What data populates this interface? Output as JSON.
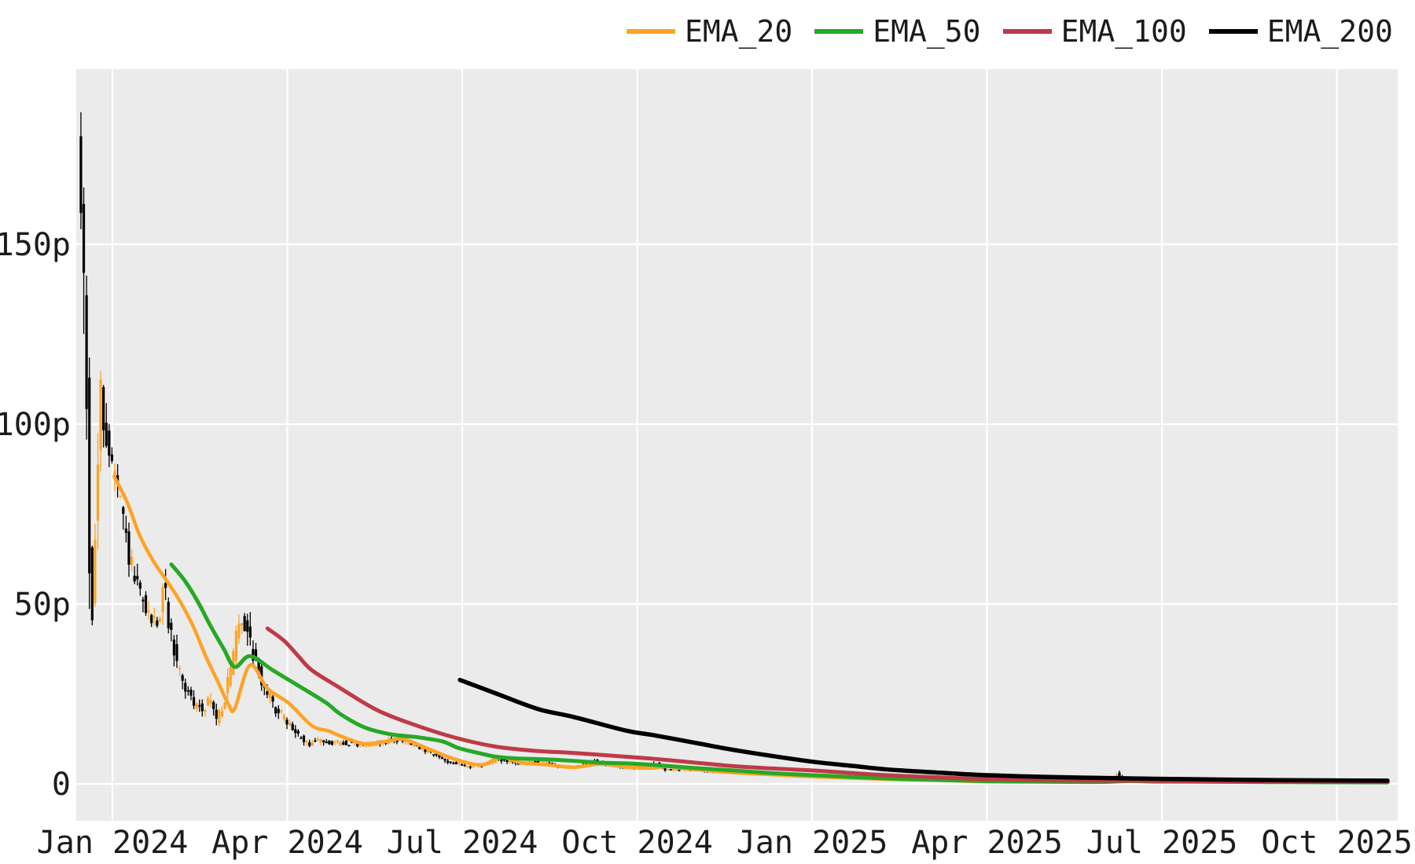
{
  "figure": {
    "background": "#ffffff",
    "plot_background": "#ebebeb",
    "gridline_color": "#ffffff",
    "text_color": "#1c1c1c"
  },
  "legend": {
    "items": [
      {
        "label": "EMA_20",
        "color": "#ffa325"
      },
      {
        "label": "EMA_50",
        "color": "#27a827"
      },
      {
        "label": "EMA_100",
        "color": "#bf3a47"
      },
      {
        "label": "EMA_200",
        "color": "#000000"
      }
    ]
  },
  "chart_data": {
    "type": "candlestick",
    "title": "",
    "grid": true,
    "legend_position": "top-right-above-axes",
    "x_axis": {
      "tick_labels": [
        "Jan 2024",
        "Apr 2024",
        "Jul 2024",
        "Oct 2024",
        "Jan 2025",
        "Apr 2025",
        "Jul 2025",
        "Oct 2025"
      ],
      "tick_months": [
        0,
        3,
        6,
        9,
        12,
        15,
        18,
        21
      ],
      "data_range_months": [
        -0.54,
        21.87
      ]
    },
    "y_axis": {
      "unit": "pence",
      "tick_labels": [
        "0",
        "50p",
        "100p",
        "150p"
      ],
      "tick_values": [
        0,
        50,
        100,
        150
      ],
      "range": [
        -10.3,
        198.7
      ]
    },
    "candles": {
      "up_color": "#ffa325",
      "down_color": "#000000",
      "step_months": 0.0484,
      "envelope_note": "keypoints [t_months_from_Jan2024, mid_price_pence, typical_hi_lo_range_pence] read from the pixels",
      "envelope": [
        [
          -0.54,
          172,
          28
        ],
        [
          -0.46,
          150,
          55
        ],
        [
          -0.4,
          110,
          55
        ],
        [
          -0.34,
          62,
          40
        ],
        [
          -0.29,
          48,
          18
        ],
        [
          -0.22,
          80,
          30
        ],
        [
          -0.16,
          108,
          20
        ],
        [
          -0.08,
          98,
          18
        ],
        [
          0.05,
          88,
          15
        ],
        [
          0.18,
          78,
          15
        ],
        [
          0.32,
          64,
          12
        ],
        [
          0.5,
          53,
          10
        ],
        [
          0.68,
          46,
          9
        ],
        [
          0.85,
          45,
          9
        ],
        [
          0.93,
          56,
          16
        ],
        [
          1.0,
          46,
          10
        ],
        [
          1.12,
          36,
          9
        ],
        [
          1.28,
          27,
          7
        ],
        [
          1.45,
          22,
          6
        ],
        [
          1.6,
          21,
          5
        ],
        [
          1.72,
          24,
          6
        ],
        [
          1.83,
          18,
          7
        ],
        [
          1.95,
          22,
          6
        ],
        [
          2.08,
          32,
          12
        ],
        [
          2.22,
          46,
          11
        ],
        [
          2.36,
          44,
          14
        ],
        [
          2.48,
          35,
          9
        ],
        [
          2.62,
          28,
          7
        ],
        [
          2.8,
          22,
          6
        ],
        [
          3.0,
          18,
          5
        ],
        [
          3.2,
          14,
          4
        ],
        [
          3.38,
          11,
          4
        ],
        [
          3.6,
          12,
          3
        ],
        [
          3.9,
          11.5,
          3
        ],
        [
          4.2,
          11,
          3
        ],
        [
          4.5,
          11,
          2.5
        ],
        [
          4.8,
          12,
          3
        ],
        [
          4.97,
          12.5,
          3
        ],
        [
          5.2,
          10.5,
          2.5
        ],
        [
          5.5,
          8.5,
          2.5
        ],
        [
          5.8,
          6.2,
          2
        ],
        [
          6.1,
          5,
          1.8
        ],
        [
          6.4,
          4.8,
          1.5
        ],
        [
          6.62,
          7,
          3
        ],
        [
          6.85,
          6,
          2
        ],
        [
          7.1,
          5.5,
          1.5
        ],
        [
          7.4,
          6.3,
          2
        ],
        [
          7.7,
          5,
          1.5
        ],
        [
          8.0,
          4.5,
          1.5
        ],
        [
          8.3,
          6.3,
          2.2
        ],
        [
          8.6,
          5,
          1.5
        ],
        [
          9.0,
          4.3,
          1.2
        ],
        [
          9.38,
          5.2,
          3.2
        ],
        [
          9.55,
          4,
          1.1
        ],
        [
          10.0,
          3.8,
          1
        ],
        [
          10.5,
          3.4,
          1
        ],
        [
          11.0,
          2.8,
          0.8
        ],
        [
          11.5,
          2.4,
          0.8
        ],
        [
          12.0,
          2.1,
          0.7
        ],
        [
          12.5,
          1.8,
          0.6
        ],
        [
          13.0,
          1.6,
          0.6
        ],
        [
          13.5,
          1.45,
          0.5
        ],
        [
          14.0,
          1.3,
          0.5
        ],
        [
          14.5,
          1.2,
          0.45
        ],
        [
          15.0,
          1.1,
          0.4
        ],
        [
          15.5,
          1.0,
          0.4
        ],
        [
          16.0,
          0.95,
          0.35
        ],
        [
          16.5,
          0.9,
          0.3
        ],
        [
          17.0,
          0.85,
          0.3
        ],
        [
          17.18,
          1.3,
          1.6
        ],
        [
          17.27,
          3.0,
          3.6
        ],
        [
          17.38,
          1.1,
          0.9
        ],
        [
          17.6,
          0.85,
          0.3
        ],
        [
          18.0,
          0.75,
          0.25
        ],
        [
          18.55,
          1.0,
          1.5
        ],
        [
          18.7,
          0.75,
          0.3
        ],
        [
          19.2,
          0.65,
          0.22
        ],
        [
          19.8,
          0.6,
          0.2
        ],
        [
          20.5,
          0.55,
          0.18
        ],
        [
          21.2,
          0.5,
          0.16
        ],
        [
          21.87,
          0.5,
          0.15
        ]
      ]
    },
    "series": [
      {
        "name": "EMA_20",
        "color": "#ffa325",
        "width": 4.5,
        "points": [
          [
            0.03,
            85.5
          ],
          [
            0.26,
            78
          ],
          [
            0.47,
            69
          ],
          [
            0.7,
            62
          ],
          [
            0.93,
            56.5
          ],
          [
            1.15,
            51
          ],
          [
            1.38,
            44
          ],
          [
            1.6,
            35.5
          ],
          [
            1.82,
            28
          ],
          [
            2.0,
            21.8
          ],
          [
            2.1,
            21
          ],
          [
            2.36,
            33
          ],
          [
            2.66,
            26.5
          ],
          [
            3.02,
            22.5
          ],
          [
            3.42,
            16.2
          ],
          [
            3.71,
            14.7
          ],
          [
            3.9,
            13.4
          ],
          [
            4.31,
            11.2
          ],
          [
            4.77,
            12.0
          ],
          [
            4.99,
            12.5
          ],
          [
            5.44,
            9.6
          ],
          [
            5.89,
            6.8
          ],
          [
            6.33,
            5.3
          ],
          [
            6.66,
            7.4
          ],
          [
            7.01,
            5.9
          ],
          [
            7.47,
            5.3
          ],
          [
            7.91,
            4.6
          ],
          [
            8.36,
            5.5
          ],
          [
            8.81,
            4.7
          ],
          [
            9.26,
            4.4
          ],
          [
            9.5,
            4.9
          ],
          [
            9.8,
            4.3
          ],
          [
            10.6,
            3.2
          ],
          [
            11.3,
            2.6
          ],
          [
            12.04,
            2.0
          ],
          [
            13.3,
            1.3
          ],
          [
            14.2,
            1.0
          ],
          [
            15.03,
            0.6
          ],
          [
            16.0,
            0.55
          ],
          [
            17.0,
            0.5
          ],
          [
            17.32,
            1.1
          ],
          [
            17.6,
            0.75
          ],
          [
            18.1,
            0.6
          ],
          [
            18.6,
            0.85
          ],
          [
            18.9,
            0.6
          ],
          [
            19.8,
            0.5
          ],
          [
            21.0,
            0.45
          ],
          [
            21.87,
            0.4
          ]
        ]
      },
      {
        "name": "EMA_50",
        "color": "#27a827",
        "width": 5,
        "points": [
          [
            1.01,
            61
          ],
          [
            1.24,
            56.5
          ],
          [
            1.47,
            50.5
          ],
          [
            1.68,
            44
          ],
          [
            1.91,
            37.5
          ],
          [
            2.1,
            32.5
          ],
          [
            2.36,
            35.5
          ],
          [
            2.76,
            31.5
          ],
          [
            3.22,
            27
          ],
          [
            3.67,
            22.5
          ],
          [
            3.9,
            19.5
          ],
          [
            4.31,
            15.8
          ],
          [
            4.77,
            13.8
          ],
          [
            5.22,
            13.0
          ],
          [
            5.66,
            11.8
          ],
          [
            5.93,
            10.0
          ],
          [
            6.33,
            8.4
          ],
          [
            6.56,
            7.6
          ],
          [
            6.9,
            7.1
          ],
          [
            7.47,
            6.8
          ],
          [
            7.91,
            6.4
          ],
          [
            8.36,
            5.9
          ],
          [
            8.81,
            5.7
          ],
          [
            9.26,
            5.3
          ],
          [
            10.0,
            4.4
          ],
          [
            10.6,
            3.8
          ],
          [
            11.3,
            3.0
          ],
          [
            12.04,
            2.4
          ],
          [
            13.3,
            1.5
          ],
          [
            14.2,
            1.1
          ],
          [
            15.03,
            0.75
          ],
          [
            16.0,
            0.62
          ],
          [
            17.0,
            0.55
          ],
          [
            17.45,
            0.8
          ],
          [
            17.9,
            0.62
          ],
          [
            18.6,
            0.6
          ],
          [
            19.8,
            0.5
          ],
          [
            21.0,
            0.45
          ],
          [
            21.87,
            0.42
          ]
        ]
      },
      {
        "name": "EMA_100",
        "color": "#bf3a47",
        "width": 5,
        "points": [
          [
            2.66,
            43.2
          ],
          [
            2.95,
            39.7
          ],
          [
            3.2,
            35.3
          ],
          [
            3.42,
            31.6
          ],
          [
            3.87,
            27
          ],
          [
            4.54,
            20.5
          ],
          [
            5.22,
            16.2
          ],
          [
            5.89,
            12.8
          ],
          [
            6.56,
            10.4
          ],
          [
            7.24,
            9.2
          ],
          [
            7.91,
            8.6
          ],
          [
            8.59,
            7.8
          ],
          [
            9.26,
            7.0
          ],
          [
            10.0,
            5.9
          ],
          [
            10.6,
            5.0
          ],
          [
            11.3,
            4.3
          ],
          [
            12.04,
            3.7
          ],
          [
            12.7,
            3.0
          ],
          [
            13.3,
            2.4
          ],
          [
            14.2,
            1.8
          ],
          [
            15.03,
            1.3
          ],
          [
            16.1,
            1.0
          ],
          [
            17.0,
            0.9
          ],
          [
            18.0,
            0.8
          ],
          [
            19.0,
            0.7
          ],
          [
            20.0,
            0.62
          ],
          [
            21.0,
            0.56
          ],
          [
            21.87,
            0.52
          ]
        ]
      },
      {
        "name": "EMA_200",
        "color": "#000000",
        "width": 5.5,
        "points": [
          [
            5.96,
            28.9
          ],
          [
            6.6,
            25
          ],
          [
            7.3,
            20.8
          ],
          [
            7.91,
            18.6
          ],
          [
            8.81,
            14.8
          ],
          [
            9.26,
            13.6
          ],
          [
            10.0,
            11.4
          ],
          [
            10.6,
            9.6
          ],
          [
            11.3,
            7.8
          ],
          [
            12.04,
            6.1
          ],
          [
            12.7,
            5.0
          ],
          [
            13.3,
            4.0
          ],
          [
            14.2,
            3.1
          ],
          [
            15.03,
            2.4
          ],
          [
            16.1,
            1.9
          ],
          [
            17.0,
            1.65
          ],
          [
            18.0,
            1.4
          ],
          [
            19.0,
            1.2
          ],
          [
            20.0,
            1.05
          ],
          [
            21.0,
            0.95
          ],
          [
            21.87,
            0.9
          ]
        ]
      }
    ]
  }
}
